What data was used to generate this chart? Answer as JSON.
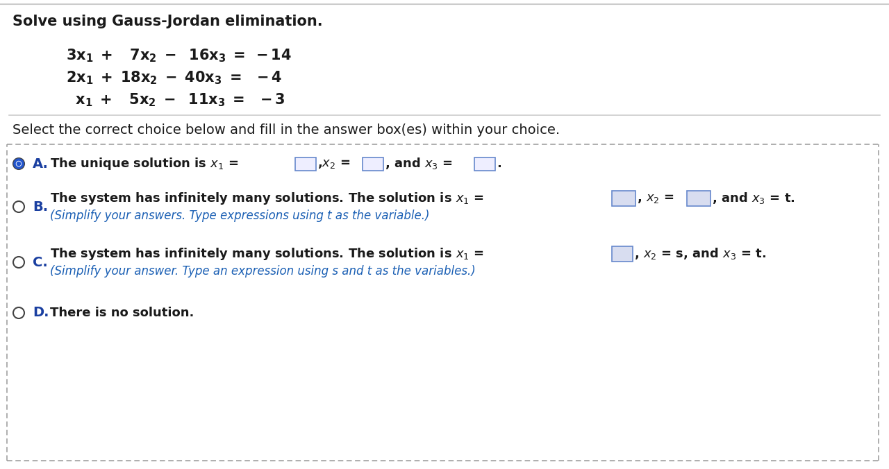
{
  "background_color": "#ffffff",
  "title_text": "Solve using Gauss-Jordan elimination.",
  "select_text": "Select the correct choice below and fill in the answer box(es) within your choice.",
  "option_B_sub": "(Simplify your answers. Type expressions using t as the variable.)",
  "option_C_sub": "(Simplify your answer. Type an expression using s and t as the variables.)",
  "option_D_text": "There is no solution.",
  "text_color": "#1a1a1a",
  "blue_label_color": "#1a3fa0",
  "blue_sub_color": "#1a5fb4",
  "box_border_color": "#6688cc",
  "box_fill_A": "#eeeeff",
  "box_fill_BC": "#d8ddf0",
  "radio_fill_selected": "#2255cc",
  "radio_border": "#444444",
  "radio_fill_empty": "#ffffff",
  "dashed_border_color": "#999999",
  "line_color": "#cccccc",
  "font_size_title": 15,
  "font_size_eq": 15,
  "font_size_select": 14,
  "font_size_option": 13,
  "font_size_sub": 12,
  "font_size_label": 14
}
